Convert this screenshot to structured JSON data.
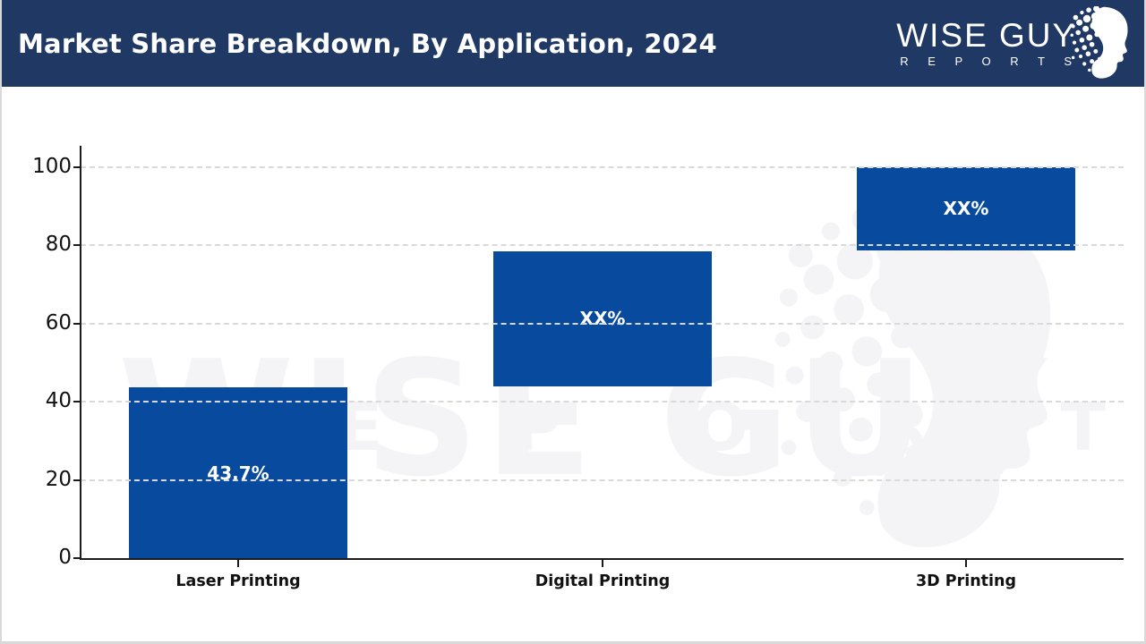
{
  "header": {
    "title": "Market Share Breakdown, By Application, 2024",
    "logo": {
      "line1": "WISE GUY",
      "line2": "R E P O R T S"
    }
  },
  "watermark": {
    "line1": "WISE GUY",
    "line2": "R E P O R T S"
  },
  "chart_data": {
    "type": "bar",
    "subtype": "floating-waterfall-bars",
    "title": "Market Share Breakdown, By Application, 2024",
    "categories": [
      "Laser Printing",
      "Digital Printing",
      "3D Printing"
    ],
    "bars": [
      {
        "category": "Laser Printing",
        "start": 0,
        "end": 43.7,
        "label": "43.7%"
      },
      {
        "category": "Digital Printing",
        "start": 44.0,
        "end": 78.6,
        "label": "XX%"
      },
      {
        "category": "3D Printing",
        "start": 78.8,
        "end": 100,
        "label": "XX%"
      }
    ],
    "xlabel": "",
    "ylabel": "",
    "ylim": [
      0,
      105
    ],
    "yticks": [
      0,
      20,
      40,
      60,
      80,
      100
    ],
    "grid": "horizontal dashed",
    "legend": "none",
    "bar_color": "#084a9e",
    "bar_label_color": "#ffffff"
  },
  "colors": {
    "header_bg": "#1f3864",
    "axis": "#1c1c1c",
    "gridline": "#d9d9d9",
    "watermark": "#f4f4f6",
    "tick_label": "#111111"
  }
}
